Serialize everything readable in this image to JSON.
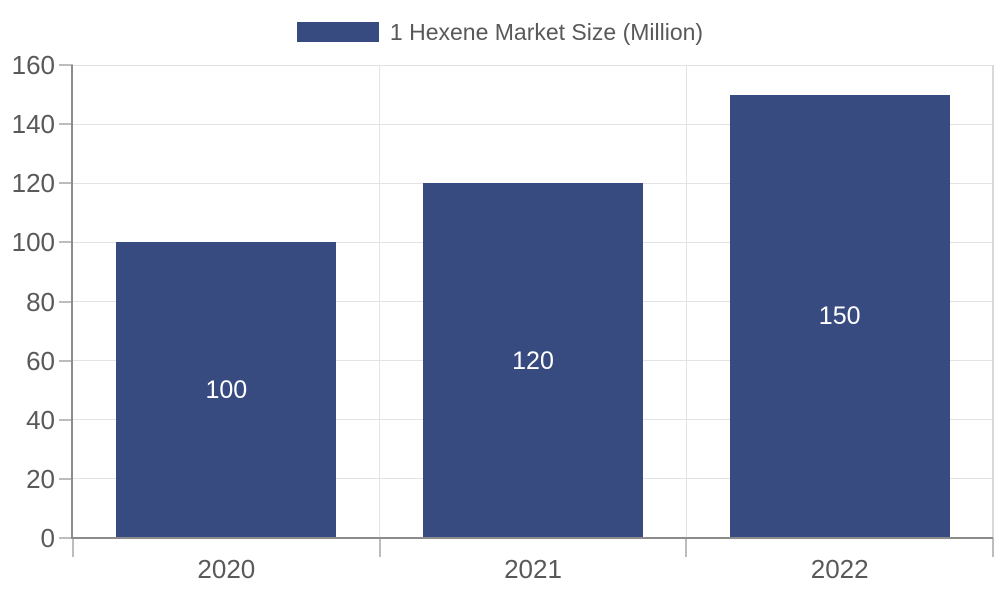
{
  "chart_data": {
    "type": "bar",
    "title": "",
    "legend": "1 Hexene Market Size (Million)",
    "categories": [
      "2020",
      "2021",
      "2022"
    ],
    "series": [
      {
        "name": "1 Hexene Market Size (Million)",
        "values": [
          100,
          120,
          150
        ]
      }
    ],
    "data_labels": [
      "100",
      "120",
      "150"
    ],
    "xlabel": "",
    "ylabel": "",
    "ylim": [
      0,
      160
    ],
    "ytick_step": 20,
    "yticks": [
      0,
      20,
      40,
      60,
      80,
      100,
      120,
      140,
      160
    ],
    "grid": true,
    "legend_position": "top-center",
    "colors": {
      "bar": "#374B80",
      "axis_line": "#8C8C8C",
      "gridline": "#E3E3E3",
      "tick": "#BDBDBD",
      "right_border": "#D9D9D9",
      "label_text": "#595959",
      "data_label_text": "#FFFFFF",
      "background": "#FFFFFF"
    }
  }
}
